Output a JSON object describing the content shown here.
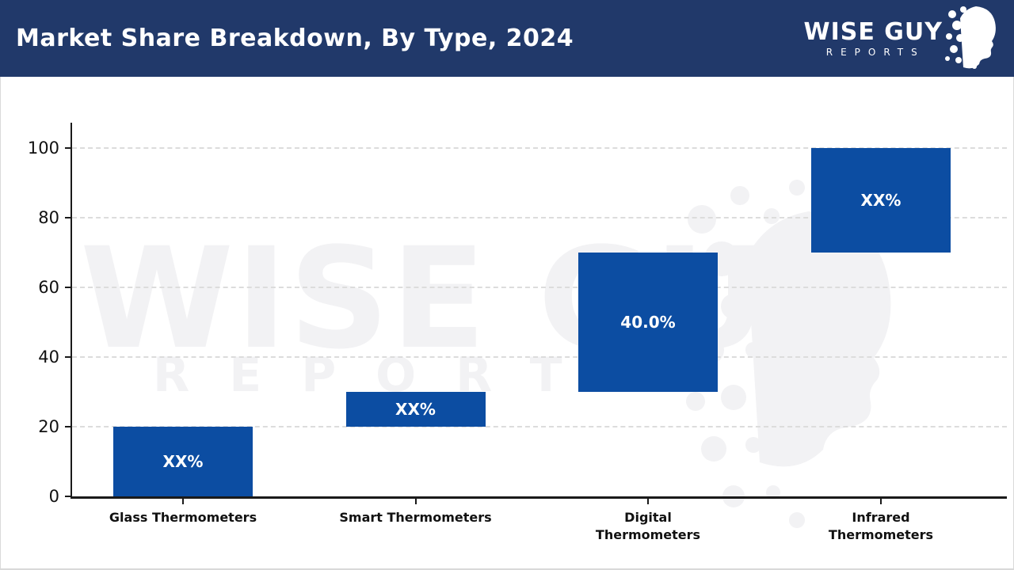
{
  "header": {
    "title": "Market Share Breakdown, By Type, 2024",
    "logo": {
      "line1": "WISE GUY",
      "line2": "REPORTS"
    }
  },
  "watermark": {
    "line1": "WISE GUY",
    "line2": "REPORTS"
  },
  "colors": {
    "header_bg": "#21396a",
    "bar": "#0c4da2",
    "grid": "#dcdcdc",
    "axis": "#1a1a1a",
    "watermark": "#f2f2f4"
  },
  "chart_data": {
    "type": "bar",
    "subtype": "waterfall",
    "title": "Market Share Breakdown, By Type, 2024",
    "categories": [
      "Glass Thermometers",
      "Smart Thermometers",
      "Digital Thermometers",
      "Infrared Thermometers"
    ],
    "category_lines": [
      [
        "Glass Thermometers"
      ],
      [
        "Smart Thermometers"
      ],
      [
        "Digital",
        "Thermometers"
      ],
      [
        "Infrared",
        "Thermometers"
      ]
    ],
    "segments": [
      {
        "category": "Glass Thermometers",
        "start": 0,
        "end": 20,
        "label": "XX%"
      },
      {
        "category": "Smart Thermometers",
        "start": 20,
        "end": 30,
        "label": "XX%"
      },
      {
        "category": "Digital Thermometers",
        "start": 30,
        "end": 70,
        "label": "40.0%"
      },
      {
        "category": "Infrared Thermometers",
        "start": 70,
        "end": 100,
        "label": "XX%"
      }
    ],
    "value_labels": [
      "XX%",
      "XX%",
      "40.0%",
      "XX%"
    ],
    "ylim": [
      0,
      100
    ],
    "yticks": [
      0,
      20,
      40,
      60,
      80,
      100
    ],
    "xlabel": "",
    "ylabel": "",
    "grid": "horizontal-dashed",
    "legend": "none",
    "bar_color": "#0c4da2"
  }
}
